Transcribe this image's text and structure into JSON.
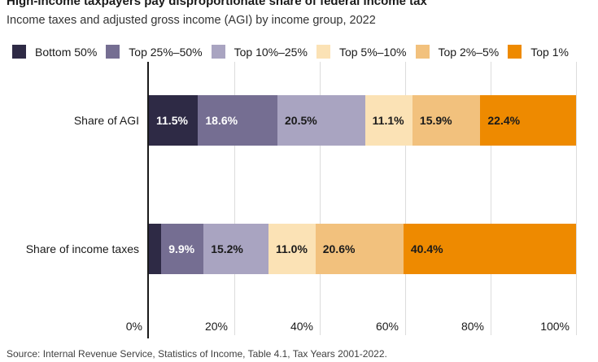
{
  "header": {
    "title": "High-income taxpayers pay disproportionate share of federal income tax",
    "subtitle": "Income taxes and adjusted gross income (AGI) by income group, 2022"
  },
  "source": "Source: Internal Revenue Service, Statistics of Income, Table 4.1, Tax Years 2001-2022.",
  "chart_data": {
    "type": "bar",
    "orientation": "horizontal",
    "stacked": true,
    "title": "High-income taxpayers pay disproportionate share of federal income tax",
    "subtitle": "Income taxes and adjusted gross income (AGI) by income group, 2022",
    "categories": [
      "Share of AGI",
      "Share of income taxes"
    ],
    "series": [
      {
        "name": "Bottom 50%",
        "color": "#2e2a45",
        "label_color": "#ffffff",
        "values": [
          11.5,
          2.9
        ],
        "labels": [
          "11.5%",
          ""
        ]
      },
      {
        "name": "Top 25%–50%",
        "color": "#756e92",
        "label_color": "#ffffff",
        "values": [
          18.6,
          9.9
        ],
        "labels": [
          "18.6%",
          "9.9%"
        ]
      },
      {
        "name": "Top 10%–25%",
        "color": "#a9a4c1",
        "label_color": "#1a1a1a",
        "values": [
          20.5,
          15.2
        ],
        "labels": [
          "20.5%",
          "15.2%"
        ]
      },
      {
        "name": "Top 5%–10%",
        "color": "#fbe2b5",
        "label_color": "#1a1a1a",
        "values": [
          11.1,
          11.0
        ],
        "labels": [
          "11.1%",
          "11.0%"
        ]
      },
      {
        "name": "Top 2%–5%",
        "color": "#f2c17d",
        "label_color": "#1a1a1a",
        "values": [
          15.9,
          20.6
        ],
        "labels": [
          "15.9%",
          "20.6%"
        ]
      },
      {
        "name": "Top 1%",
        "color": "#ee8a00",
        "label_color": "#1a1a1a",
        "values": [
          22.4,
          40.4
        ],
        "labels": [
          "22.4%",
          "40.4%"
        ]
      }
    ],
    "x_axis": {
      "tick_values": [
        0,
        20,
        40,
        60,
        80,
        100
      ],
      "tick_labels": [
        "0%",
        "20%",
        "40%",
        "60%",
        "80%",
        "100%"
      ],
      "max": 100
    },
    "grid": true,
    "legend_position": "top"
  }
}
